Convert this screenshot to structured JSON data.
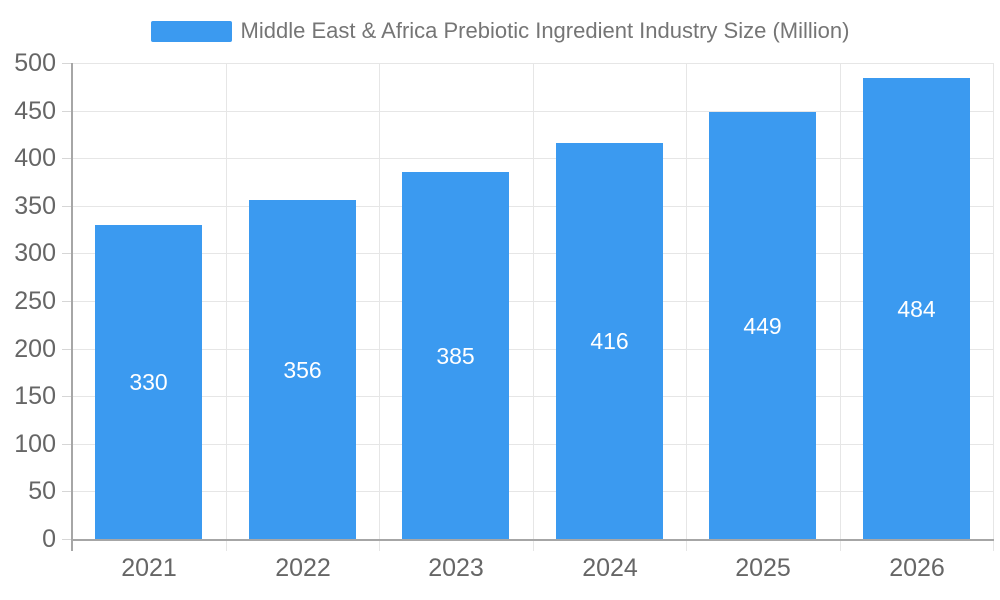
{
  "legend": {
    "label": "Middle East & Africa Prebiotic Ingredient Industry Size (Million)"
  },
  "colors": {
    "bar": "#3b9af0",
    "grid": "#e6e6e6",
    "tick": "#d6d6d6",
    "axis": "#a6a6a6",
    "tick_label": "#666666",
    "legend_text": "#757575",
    "bar_label": "#ffffff",
    "background": "#ffffff"
  },
  "chart_data": {
    "type": "bar",
    "title": "Middle East & Africa Prebiotic Ingredient Industry Size (Million)",
    "categories": [
      "2021",
      "2022",
      "2023",
      "2024",
      "2025",
      "2026"
    ],
    "values": [
      330,
      356,
      385,
      416,
      449,
      484
    ],
    "xlabel": "",
    "ylabel": "",
    "ylim": [
      0,
      500
    ],
    "yticks": [
      0,
      50,
      100,
      150,
      200,
      250,
      300,
      350,
      400,
      450,
      500
    ],
    "grid": true,
    "legend_position": "top",
    "bar_label_position": "center"
  }
}
